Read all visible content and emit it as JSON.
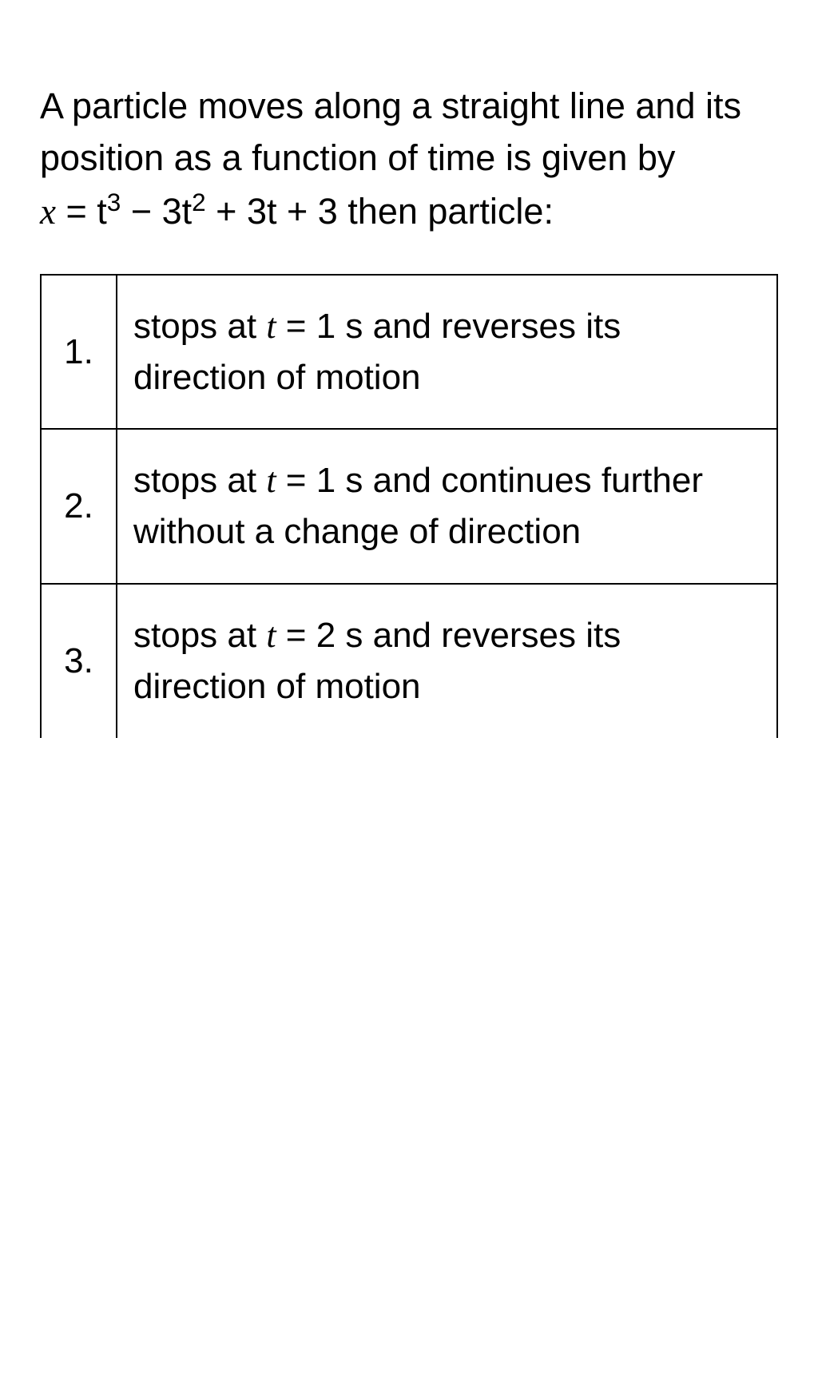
{
  "question": {
    "intro": "A particle moves along a straight line and its position as a function of time is given by",
    "equation_lhs": "x",
    "equation_rhs": " = t",
    "exp1": "3",
    "minus": " − 3t",
    "exp2": "2",
    "plus": " + 3t + 3",
    "tail": " then particle:"
  },
  "options": [
    {
      "num": "1.",
      "pre": "stops at ",
      "var": "t",
      "eq": " = 1 ",
      "unit": "s",
      "post": " and reverses its direction of motion"
    },
    {
      "num": "2.",
      "pre": "stops at ",
      "var": "t",
      "eq": " = 1 ",
      "unit": "s",
      "post": " and continues further without a change of direction"
    },
    {
      "num": "3.",
      "pre": "stops at ",
      "var": "t",
      "eq": " = 2 ",
      "unit": "s",
      "post": " and reverses its direction of motion"
    }
  ],
  "styles": {
    "background_color": "#ffffff",
    "text_color": "#000000",
    "border_color": "#000000",
    "font_size_body": 45,
    "font_size_table": 44
  }
}
